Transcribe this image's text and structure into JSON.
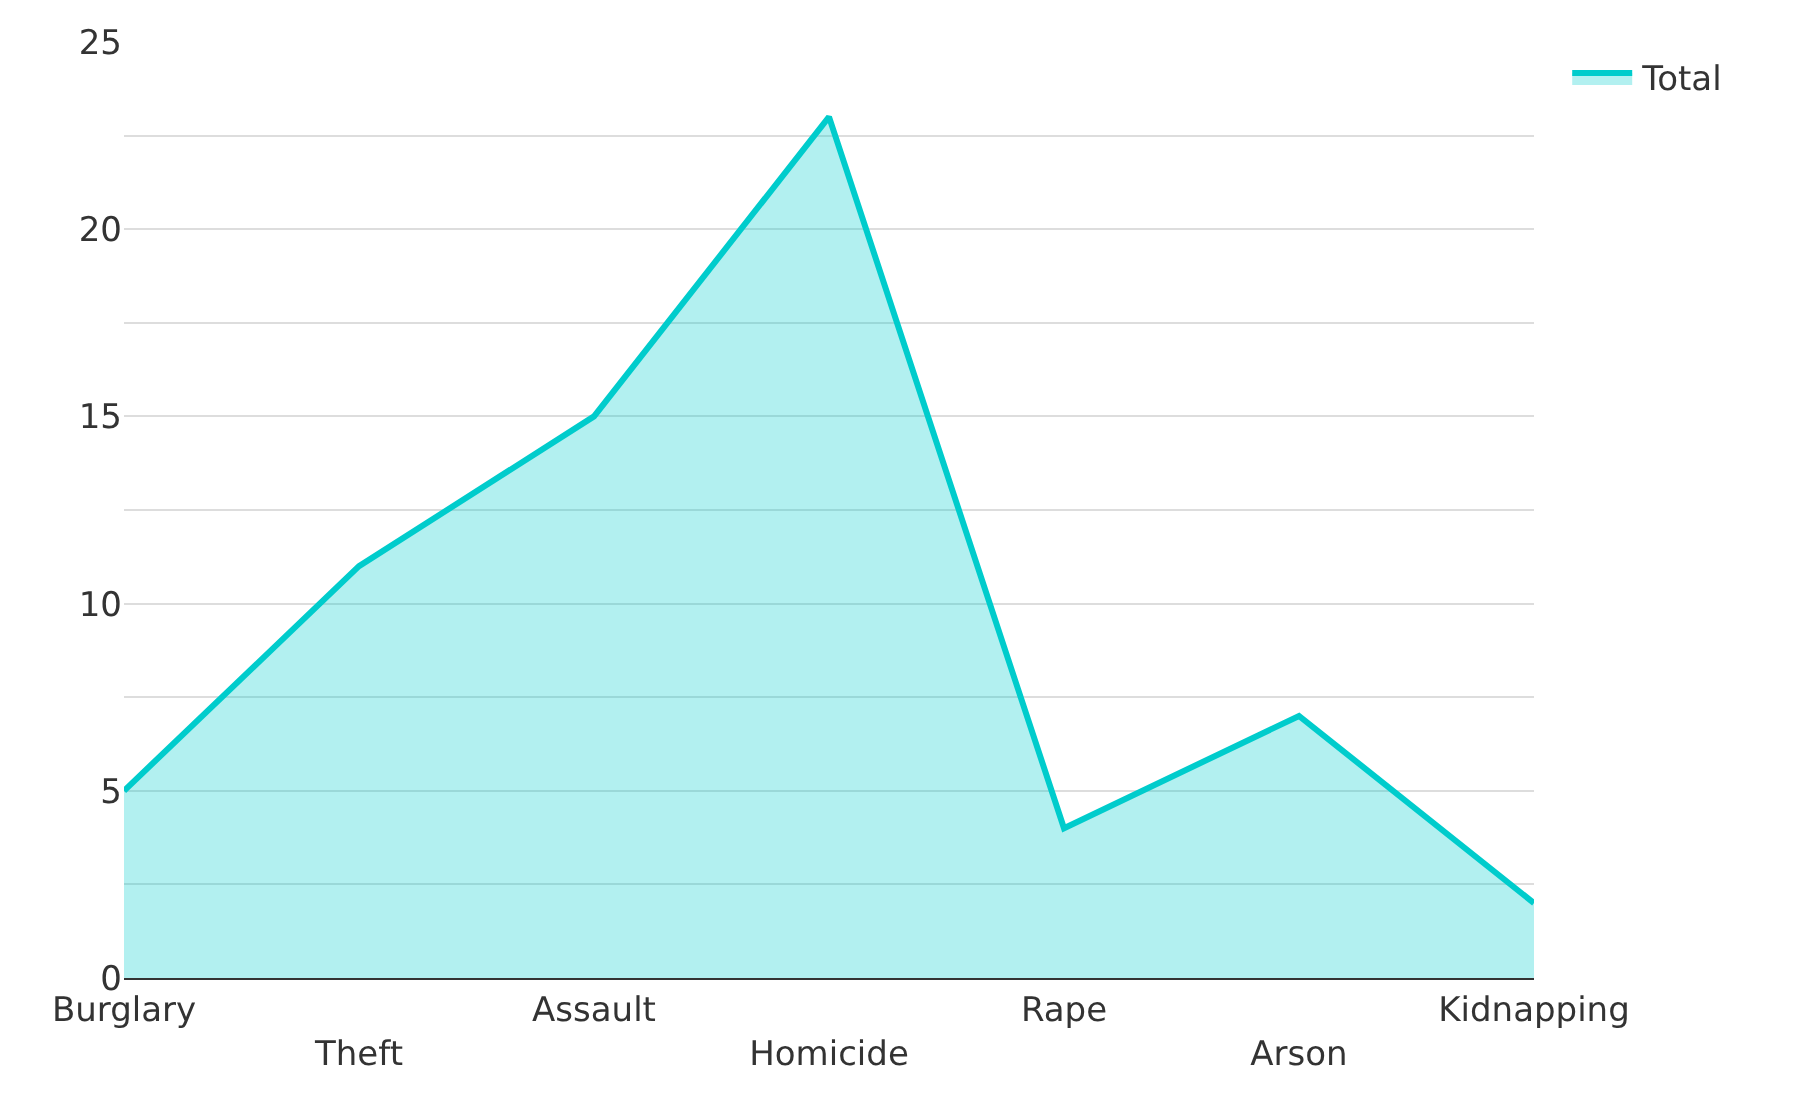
{
  "chart_data": {
    "type": "area",
    "categories": [
      "Burglary",
      "Theft",
      "Assault",
      "Homicide",
      "Rape",
      "Arson",
      "Kidnapping"
    ],
    "series": [
      {
        "name": "Total",
        "color": "#00cccc",
        "values": [
          5,
          11,
          15,
          23,
          4,
          7,
          2
        ]
      }
    ],
    "ylim": [
      0,
      25
    ],
    "yticks": [
      0,
      {
        "value": 2.5,
        "label": null
      },
      5,
      {
        "value": 7.5,
        "label": null
      },
      10,
      {
        "value": 12.5,
        "label": null
      },
      15,
      {
        "value": 17.5,
        "label": null
      },
      20,
      {
        "value": 22.5,
        "label": null
      },
      25
    ],
    "grid": "y",
    "legend": "top right"
  }
}
